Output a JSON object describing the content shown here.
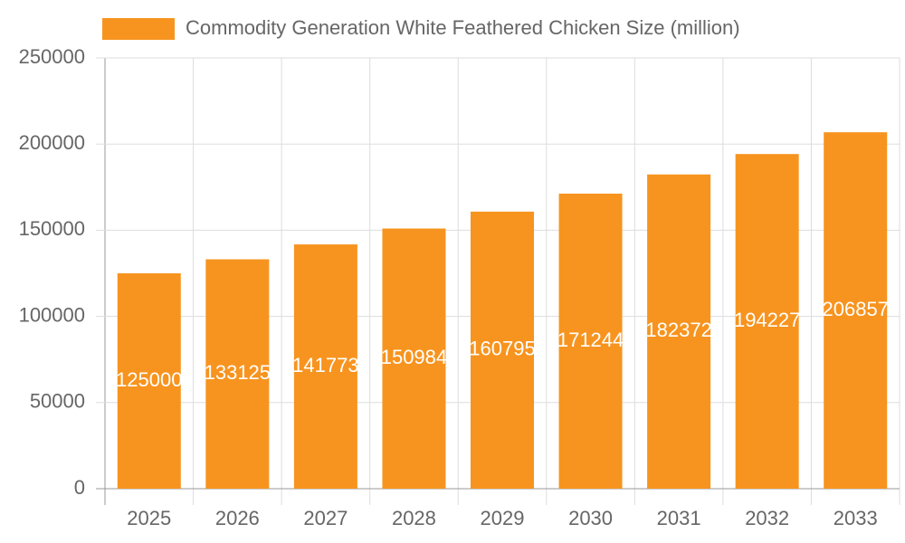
{
  "chart_data": {
    "type": "bar",
    "categories": [
      "2025",
      "2026",
      "2027",
      "2028",
      "2029",
      "2030",
      "2031",
      "2032",
      "2033"
    ],
    "series": [
      {
        "name": "Commodity Generation White Feathered Chicken Size (million)",
        "color": "#f7941f",
        "values": [
          125000,
          133125,
          141773,
          150984,
          160795,
          171244,
          182372,
          194227,
          206857
        ]
      }
    ],
    "ylim": [
      0,
      250000
    ],
    "yticks": [
      0,
      50000,
      100000,
      150000,
      200000,
      250000
    ],
    "grid": true,
    "legend": "top",
    "data_labels": true
  }
}
